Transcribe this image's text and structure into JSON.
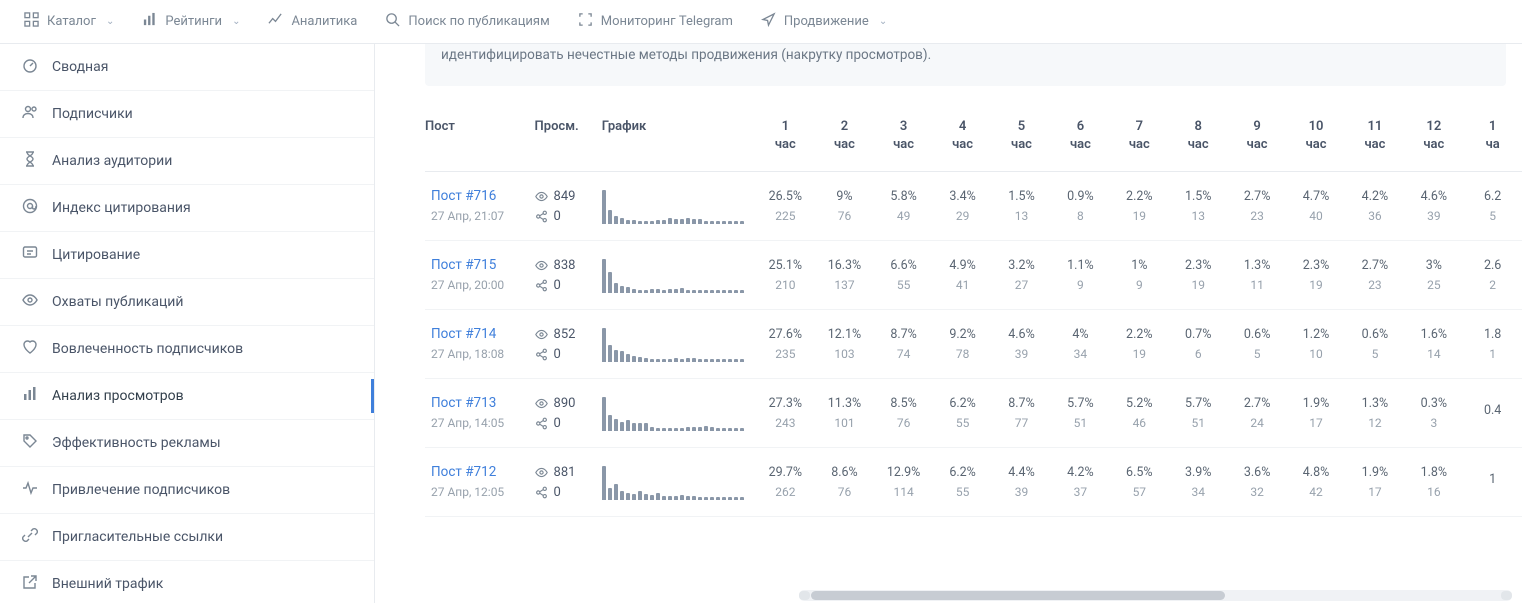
{
  "topnav": [
    {
      "label": "Каталог",
      "dropdown": true,
      "icon": "grid"
    },
    {
      "label": "Рейтинги",
      "dropdown": true,
      "icon": "bars"
    },
    {
      "label": "Аналитика",
      "dropdown": false,
      "icon": "line"
    },
    {
      "label": "Поиск по публикациям",
      "dropdown": false,
      "icon": "search"
    },
    {
      "label": "Мониторинг Telegram",
      "dropdown": false,
      "icon": "focus"
    },
    {
      "label": "Продвижение",
      "dropdown": true,
      "icon": "send"
    }
  ],
  "sidebar": [
    {
      "label": "Сводная",
      "icon": "gauge"
    },
    {
      "label": "Подписчики",
      "icon": "users"
    },
    {
      "label": "Анализ аудитории",
      "icon": "hourglass"
    },
    {
      "label": "Индекс цитирования",
      "icon": "at"
    },
    {
      "label": "Цитирование",
      "icon": "quote"
    },
    {
      "label": "Охваты публикаций",
      "icon": "eye"
    },
    {
      "label": "Вовлеченность подписчиков",
      "icon": "heart"
    },
    {
      "label": "Анализ просмотров",
      "icon": "bars",
      "active": true
    },
    {
      "label": "Эффективность рекламы",
      "icon": "tag"
    },
    {
      "label": "Привлечение подписчиков",
      "icon": "pulse"
    },
    {
      "label": "Пригласительные ссылки",
      "icon": "link"
    },
    {
      "label": "Внешний трафик",
      "icon": "external"
    }
  ],
  "info_fragment": "идентифицировать нечестные методы продвижения (накрутку просмотров).",
  "colors": {
    "link": "#3f7fdb",
    "text": "#4a5568",
    "muted": "#97a1ac",
    "border": "#e8ebef",
    "spark_bar": "#8a97a8",
    "active_indicator": "#3f7fdb",
    "info_bg": "#f6f8fa"
  },
  "table": {
    "cols": {
      "post": "Пост",
      "views": "Просм.",
      "chart": "График",
      "hour_suffix": "час",
      "hours": [
        "1",
        "2",
        "3",
        "4",
        "5",
        "6",
        "7",
        "8",
        "9",
        "10",
        "11",
        "12",
        "1"
      ]
    },
    "last_hour_truncated_label": "ча",
    "rows": [
      {
        "title": "Пост #716",
        "date": "27 Апр, 21:07",
        "views": "849",
        "shares": "0",
        "spark": [
          100,
          42,
          26,
          18,
          14,
          12,
          10,
          10,
          11,
          12,
          13,
          18,
          16,
          15,
          18,
          17,
          16,
          10,
          9,
          8,
          8,
          9,
          10,
          6
        ],
        "pct": [
          "26.5%",
          "9%",
          "5.8%",
          "3.4%",
          "1.5%",
          "0.9%",
          "2.2%",
          "1.5%",
          "2.7%",
          "4.7%",
          "4.2%",
          "4.6%",
          "6.2"
        ],
        "cnt": [
          "225",
          "76",
          "49",
          "29",
          "13",
          "8",
          "19",
          "13",
          "23",
          "40",
          "36",
          "39",
          "5"
        ]
      },
      {
        "title": "Пост #715",
        "date": "27 Апр, 20:00",
        "views": "838",
        "shares": "0",
        "spark": [
          100,
          62,
          30,
          22,
          18,
          14,
          11,
          10,
          12,
          14,
          10,
          12,
          13,
          15,
          10,
          9,
          8,
          8,
          9,
          10,
          8,
          8,
          9,
          7
        ],
        "pct": [
          "25.1%",
          "16.3%",
          "6.6%",
          "4.9%",
          "3.2%",
          "1.1%",
          "1%",
          "2.3%",
          "1.3%",
          "2.3%",
          "2.7%",
          "3%",
          "2.6"
        ],
        "cnt": [
          "210",
          "137",
          "55",
          "41",
          "27",
          "9",
          "9",
          "19",
          "11",
          "19",
          "23",
          "25",
          "2"
        ]
      },
      {
        "title": "Пост #714",
        "date": "27 Апр, 18:08",
        "views": "852",
        "shares": "0",
        "spark": [
          100,
          50,
          35,
          32,
          24,
          20,
          16,
          13,
          10,
          8,
          8,
          10,
          12,
          9,
          14,
          12,
          10,
          10,
          8,
          8,
          9,
          10,
          8,
          8
        ],
        "pct": [
          "27.6%",
          "12.1%",
          "8.7%",
          "9.2%",
          "4.6%",
          "4%",
          "2.2%",
          "0.7%",
          "0.6%",
          "1.2%",
          "0.6%",
          "1.6%",
          "1.8"
        ],
        "cnt": [
          "235",
          "103",
          "74",
          "78",
          "39",
          "34",
          "19",
          "6",
          "5",
          "10",
          "5",
          "14",
          "1"
        ]
      },
      {
        "title": "Пост #713",
        "date": "27 Апр, 14:05",
        "views": "890",
        "shares": "0",
        "spark": [
          100,
          48,
          36,
          28,
          34,
          26,
          24,
          25,
          14,
          11,
          10,
          8,
          6,
          10,
          12,
          12,
          14,
          15,
          12,
          10,
          10,
          9,
          8,
          7
        ],
        "pct": [
          "27.3%",
          "11.3%",
          "8.5%",
          "6.2%",
          "8.7%",
          "5.7%",
          "5.2%",
          "5.7%",
          "2.7%",
          "1.9%",
          "1.3%",
          "0.3%",
          "0.4"
        ],
        "cnt": [
          "243",
          "101",
          "76",
          "55",
          "77",
          "51",
          "46",
          "51",
          "24",
          "17",
          "12",
          "3",
          ""
        ]
      },
      {
        "title": "Пост #712",
        "date": "27 Апр, 12:05",
        "views": "881",
        "shares": "0",
        "spark": [
          100,
          36,
          48,
          28,
          22,
          20,
          28,
          18,
          17,
          22,
          12,
          12,
          14,
          16,
          14,
          13,
          11,
          10,
          10,
          9,
          8,
          8,
          9,
          7
        ],
        "pct": [
          "29.7%",
          "8.6%",
          "12.9%",
          "6.2%",
          "4.4%",
          "4.2%",
          "6.5%",
          "3.9%",
          "3.6%",
          "4.8%",
          "1.9%",
          "1.8%",
          "1"
        ],
        "cnt": [
          "262",
          "76",
          "114",
          "55",
          "39",
          "37",
          "57",
          "34",
          "32",
          "42",
          "17",
          "16",
          ""
        ]
      }
    ]
  }
}
